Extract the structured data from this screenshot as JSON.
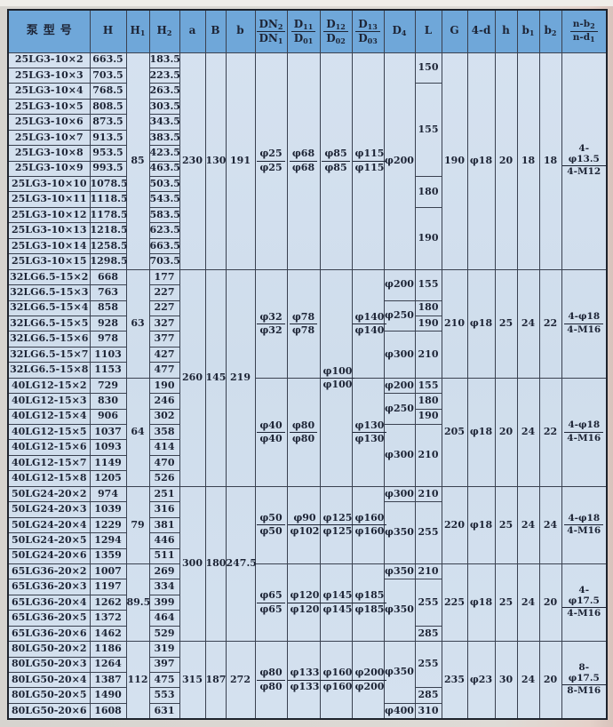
{
  "colors": {
    "header_bg": "#6FA7D9",
    "body_bg": "#D3E0EE",
    "border": "#3A4150",
    "outer_border": "#1D222B",
    "text": "#1D2435",
    "page_bg": "#DEDBD6"
  },
  "table": {
    "row_count": 43,
    "keys": [
      "model",
      "H",
      "H1",
      "H2",
      "a",
      "B",
      "b",
      "DN",
      "D11",
      "D12",
      "D13",
      "D4",
      "L",
      "G",
      "d",
      "h",
      "b1",
      "b2",
      "n"
    ],
    "header": [
      "泵型号",
      "H",
      "H_1",
      "H_2",
      "a",
      "B",
      "b",
      "DN_2/DN_1",
      "D_11/D_01",
      "D_12/D_02",
      "D_13/D_03",
      "D_4",
      "L",
      "G",
      "4-d",
      "h",
      "b_1",
      "b_2",
      "n-b_2/n-d_1"
    ],
    "columns": {
      "model": [
        "25LG3-10×2",
        "25LG3-10×3",
        "25LG3-10×4",
        "25LG3-10×5",
        "25LG3-10×6",
        "25LG3-10×7",
        "25LG3-10×8",
        "25LG3-10×9",
        "25LG3-10×10",
        "25LG3-10×11",
        "25LG3-10×12",
        "25LG3-10×13",
        "25LG3-10×14",
        "25LG3-10×15",
        "32LG6.5-15×2",
        "32LG6.5-15×3",
        "32LG6.5-15×4",
        "32LG6.5-15×5",
        "32LG6.5-15×6",
        "32LG6.5-15×7",
        "32LG6.5-15×8",
        "40LG12-15×2",
        "40LG12-15×3",
        "40LG12-15×4",
        "40LG12-15×5",
        "40LG12-15×6",
        "40LG12-15×7",
        "40LG12-15×8",
        "50LG24-20×2",
        "50LG24-20×3",
        "50LG24-20×4",
        "50LG24-20×5",
        "50LG24-20×6",
        "65LG36-20×2",
        "65LG36-20×3",
        "65LG36-20×4",
        "65LG36-20×5",
        "65LG36-20×6",
        "80LG50-20×2",
        "80LG50-20×3",
        "80LG50-20×4",
        "80LG50-20×5",
        "80LG50-20×6"
      ],
      "H": [
        "663.5",
        "703.5",
        "768.5",
        "808.5",
        "873.5",
        "913.5",
        "953.5",
        "993.5",
        "1078.5",
        "1118.5",
        "1178.5",
        "1218.5",
        "1258.5",
        "1298.5",
        "668",
        "763",
        "858",
        "928",
        "978",
        "1103",
        "1153",
        "729",
        "830",
        "906",
        "1037",
        "1093",
        "1149",
        "1205",
        "974",
        "1039",
        "1229",
        "1294",
        "1359",
        "1007",
        "1197",
        "1262",
        "1372",
        "1462",
        "1186",
        "1264",
        "1387",
        "1490",
        "1608"
      ],
      "H1": [
        [
          "85",
          14
        ],
        [
          "63",
          7
        ],
        [
          "64",
          7
        ],
        [
          "79",
          5
        ],
        [
          "89.5",
          5
        ],
        [
          "112",
          5
        ]
      ],
      "H2": [
        "183.5",
        "223.5",
        "263.5",
        "303.5",
        "343.5",
        "383.5",
        "423.5",
        "463.5",
        "503.5",
        "543.5",
        "583.5",
        "623.5",
        "663.5",
        "703.5",
        "177",
        "227",
        "227",
        "327",
        "377",
        "427",
        "477",
        "190",
        "246",
        "302",
        "358",
        "414",
        "470",
        "526",
        "251",
        "316",
        "381",
        "446",
        "511",
        "269",
        "334",
        "399",
        "464",
        "529",
        "319",
        "397",
        "475",
        "553",
        "631"
      ],
      "a": [
        [
          "230",
          14
        ],
        [
          "260",
          14
        ],
        [
          "300",
          10
        ],
        [
          "315",
          5
        ]
      ],
      "B": [
        [
          "130",
          14
        ],
        [
          "145",
          14
        ],
        [
          "180",
          10
        ],
        [
          "187",
          5
        ]
      ],
      "b": [
        [
          "191",
          14
        ],
        [
          "219",
          14
        ],
        [
          "247.5",
          10
        ],
        [
          "272",
          5
        ]
      ],
      "DN": [
        [
          "φ25/φ25",
          14
        ],
        [
          "φ32/φ32",
          7
        ],
        [
          "φ40/φ40",
          7
        ],
        [
          "φ50/φ50",
          5
        ],
        [
          "φ65/φ65",
          5
        ],
        [
          "φ80/φ80",
          5
        ]
      ],
      "D11": [
        [
          "φ68/φ68",
          14
        ],
        [
          "φ78/φ78",
          7
        ],
        [
          "φ80/φ80",
          7
        ],
        [
          "φ90/φ102",
          5
        ],
        [
          "φ120/φ120",
          5
        ],
        [
          "φ133/φ133",
          5
        ]
      ],
      "D12": [
        [
          "φ85/φ85",
          14
        ],
        [
          "φ100/φ100",
          14
        ],
        [
          "φ125/φ125",
          5
        ],
        [
          "φ145/φ145",
          5
        ],
        [
          "φ160/φ160",
          5
        ]
      ],
      "D13": [
        [
          "φ115/φ115",
          14
        ],
        [
          "φ140/φ140",
          7
        ],
        [
          "φ130/φ130",
          7
        ],
        [
          "φ160/φ160",
          5
        ],
        [
          "φ185/φ185",
          5
        ],
        [
          "φ200/φ200",
          5
        ]
      ],
      "D4": [
        [
          "φ200",
          14
        ],
        [
          "φ200",
          2
        ],
        [
          "φ250",
          2
        ],
        [
          "φ300",
          3
        ],
        [
          "φ200",
          1
        ],
        [
          "φ250",
          2
        ],
        [
          "φ300",
          4
        ],
        [
          "φ300",
          1
        ],
        [
          "φ350",
          4
        ],
        [
          "φ350",
          1
        ],
        [
          "φ350",
          4
        ],
        [
          "φ350",
          4
        ],
        [
          "φ400",
          1
        ]
      ],
      "L": [
        [
          "150",
          2
        ],
        [
          "155",
          6
        ],
        [
          "180",
          2
        ],
        [
          "190",
          4
        ],
        [
          "155",
          2
        ],
        [
          "180",
          1
        ],
        [
          "190",
          1
        ],
        [
          "210",
          3
        ],
        [
          "155",
          1
        ],
        [
          "180",
          1
        ],
        [
          "190",
          1
        ],
        [
          "210",
          4
        ],
        [
          "210",
          1
        ],
        [
          "255",
          4
        ],
        [
          "210",
          1
        ],
        [
          "255",
          3
        ],
        [
          "285",
          1
        ],
        [
          "255",
          3
        ],
        [
          "285",
          1
        ],
        [
          "310",
          1
        ]
      ],
      "G": [
        [
          "190",
          14
        ],
        [
          "210",
          7
        ],
        [
          "205",
          7
        ],
        [
          "220",
          5
        ],
        [
          "225",
          5
        ],
        [
          "235",
          5
        ]
      ],
      "d": [
        [
          "φ18",
          14
        ],
        [
          "φ18",
          7
        ],
        [
          "φ18",
          7
        ],
        [
          "φ18",
          5
        ],
        [
          "φ18",
          5
        ],
        [
          "φ23",
          5
        ]
      ],
      "h": [
        [
          "20",
          14
        ],
        [
          "25",
          7
        ],
        [
          "20",
          7
        ],
        [
          "25",
          5
        ],
        [
          "25",
          5
        ],
        [
          "30",
          5
        ]
      ],
      "b1": [
        [
          "18",
          14
        ],
        [
          "24",
          7
        ],
        [
          "24",
          7
        ],
        [
          "24",
          5
        ],
        [
          "24",
          5
        ],
        [
          "24",
          5
        ]
      ],
      "b2": [
        [
          "18",
          14
        ],
        [
          "22",
          7
        ],
        [
          "22",
          7
        ],
        [
          "24",
          5
        ],
        [
          "20",
          5
        ],
        [
          "20",
          5
        ]
      ],
      "n": [
        [
          "4-φ13.5/4-M12",
          14
        ],
        [
          "4-φ18/4-M16",
          7
        ],
        [
          "4-φ18/4-M16",
          7
        ],
        [
          "4-φ18/4-M16",
          5
        ],
        [
          "4-φ17.5/4-M16",
          5
        ],
        [
          "8-φ17.5/8-M16",
          5
        ]
      ]
    }
  }
}
